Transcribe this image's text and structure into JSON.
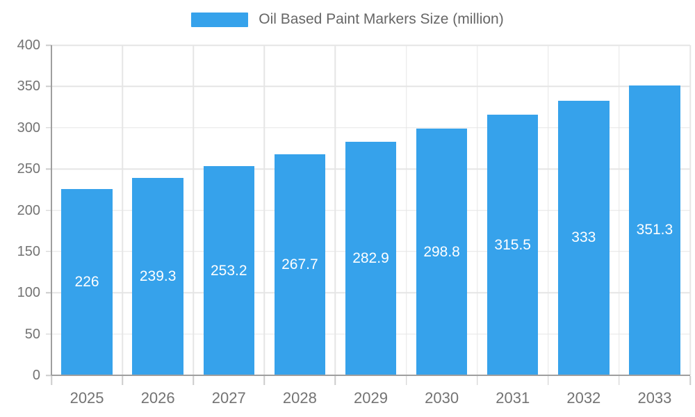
{
  "chart_data": {
    "type": "bar",
    "title": "Oil Based Paint Markers Size (million)",
    "categories": [
      "2025",
      "2026",
      "2027",
      "2028",
      "2029",
      "2030",
      "2031",
      "2032",
      "2033"
    ],
    "series": [
      {
        "name": "Oil Based Paint Markers Size (million)",
        "values": [
          226,
          239.3,
          253.2,
          267.7,
          282.9,
          298.8,
          315.5,
          333,
          351.3
        ],
        "value_labels": [
          "226",
          "239.3",
          "253.2",
          "267.7",
          "282.9",
          "298.8",
          "315.5",
          "333",
          "351.3"
        ]
      }
    ],
    "xlabel": "",
    "ylabel": "",
    "ylim": [
      0,
      400
    ],
    "yticks": [
      0,
      50,
      100,
      150,
      200,
      250,
      300,
      350,
      400
    ],
    "grid": "horizontal and vertical gridlines on",
    "legend_position": "top-center",
    "value_label_position": "centered inside bar",
    "colors": {
      "bar": "#36A2EB",
      "gridline": "#e5e5e5",
      "axis_line": "#9e9e9e",
      "tick_mark": "#cccccc",
      "axis_label_text": "#737373",
      "legend_text": "#666666",
      "value_label_text": "#ffffff",
      "background": "#ffffff"
    }
  }
}
